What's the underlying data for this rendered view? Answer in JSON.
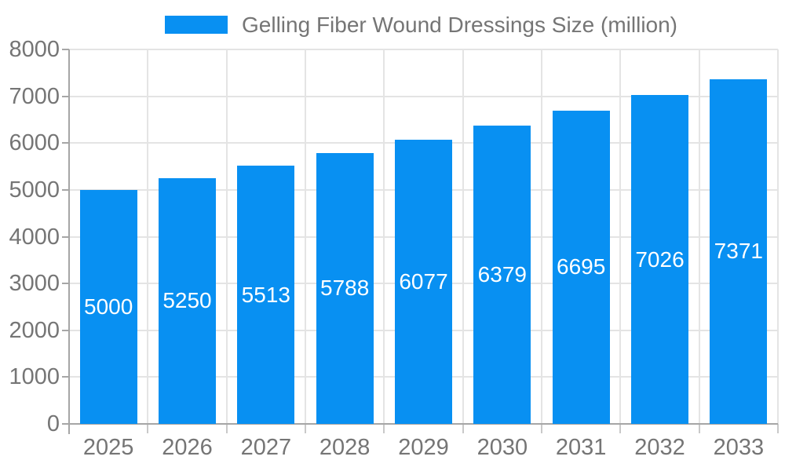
{
  "legend": {
    "label": "Gelling Fiber Wound Dressings Size (million)"
  },
  "colors": {
    "bar": "#0890f2",
    "grid": "#e4e4e4",
    "axis": "#a6a6a6",
    "tick": "#c9c9c9",
    "text": "#757575",
    "value_text": "#ffffff",
    "background": "#ffffff"
  },
  "chart_data": {
    "type": "bar",
    "title": "Gelling Fiber Wound Dressings Size (million)",
    "categories": [
      "2025",
      "2026",
      "2027",
      "2028",
      "2029",
      "2030",
      "2031",
      "2032",
      "2033"
    ],
    "values": [
      5000,
      5250,
      5513,
      5788,
      6077,
      6379,
      6695,
      7026,
      7371
    ],
    "xlabel": "",
    "ylabel": "",
    "ylim": [
      0,
      8000
    ],
    "ytick_step": 1000,
    "ytick_labels": [
      "0",
      "1000",
      "2000",
      "3000",
      "4000",
      "5000",
      "6000",
      "7000",
      "8000"
    ],
    "grid": true,
    "legend_position": "top",
    "value_label_style": "white-centered-inside-bar"
  }
}
